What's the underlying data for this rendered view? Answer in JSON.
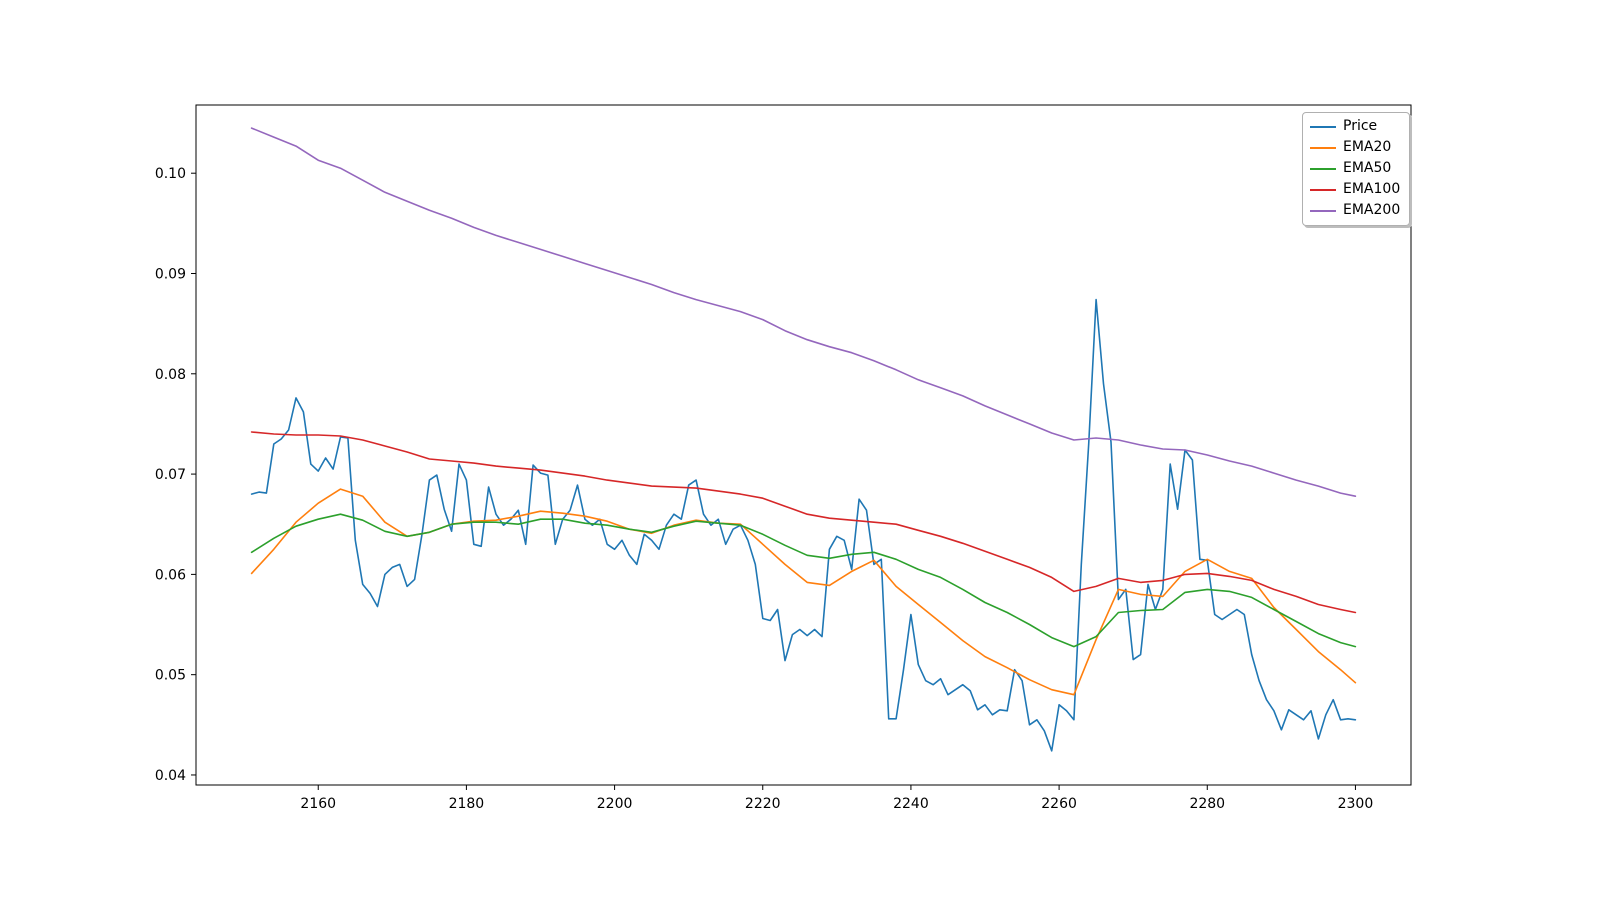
{
  "chart_data": {
    "type": "line",
    "title": "",
    "xlabel": "",
    "ylabel": "",
    "grid": false,
    "legend_position": "upper right",
    "xlim": [
      2143.5,
      2307.5
    ],
    "ylim": [
      0.039,
      0.1068
    ],
    "x_ticks": [
      2160,
      2180,
      2200,
      2220,
      2240,
      2260,
      2280,
      2300
    ],
    "y_ticks": [
      0.04,
      0.05,
      0.06,
      0.07,
      0.08,
      0.09,
      0.1
    ],
    "axis_color": "#000000",
    "tick_label_color": "#000000",
    "series": [
      {
        "name": "Price",
        "color": "#1f77b4",
        "x_start": 2151,
        "x_step": 1,
        "y": [
          0.068,
          0.0682,
          0.0681,
          0.073,
          0.0735,
          0.0744,
          0.0776,
          0.0762,
          0.071,
          0.0703,
          0.0716,
          0.0705,
          0.0737,
          0.0736,
          0.0634,
          0.059,
          0.0581,
          0.0568,
          0.06,
          0.0607,
          0.061,
          0.0588,
          0.0595,
          0.064,
          0.0694,
          0.0699,
          0.0665,
          0.0643,
          0.071,
          0.0694,
          0.063,
          0.0628,
          0.0687,
          0.066,
          0.0649,
          0.0655,
          0.0664,
          0.063,
          0.0709,
          0.0701,
          0.0699,
          0.063,
          0.0655,
          0.0664,
          0.0689,
          0.0655,
          0.0649,
          0.0655,
          0.063,
          0.0625,
          0.0634,
          0.0619,
          0.061,
          0.064,
          0.0634,
          0.0625,
          0.0649,
          0.066,
          0.0655,
          0.0689,
          0.0694,
          0.066,
          0.0649,
          0.0655,
          0.063,
          0.0645,
          0.0649,
          0.0634,
          0.061,
          0.0556,
          0.0554,
          0.0565,
          0.0514,
          0.054,
          0.0545,
          0.0539,
          0.0545,
          0.0538,
          0.0625,
          0.0638,
          0.0634,
          0.0605,
          0.0675,
          0.0664,
          0.061,
          0.0615,
          0.0456,
          0.0456,
          0.0505,
          0.056,
          0.051,
          0.0494,
          0.049,
          0.0496,
          0.048,
          0.0485,
          0.049,
          0.0484,
          0.0465,
          0.047,
          0.046,
          0.0465,
          0.0464,
          0.0505,
          0.0494,
          0.045,
          0.0455,
          0.0444,
          0.0424,
          0.047,
          0.0464,
          0.0455,
          0.061,
          0.073,
          0.0874,
          0.079,
          0.0732,
          0.0575,
          0.0585,
          0.0515,
          0.052,
          0.059,
          0.0565,
          0.0585,
          0.071,
          0.0665,
          0.0724,
          0.0714,
          0.0615,
          0.0614,
          0.056,
          0.0555,
          0.056,
          0.0565,
          0.056,
          0.052,
          0.0494,
          0.0475,
          0.0464,
          0.0445,
          0.0465,
          0.046,
          0.0455,
          0.0464,
          0.0436,
          0.046,
          0.0475,
          0.0455,
          0.0456,
          0.0455
        ]
      },
      {
        "name": "EMA20",
        "color": "#ff7f0e",
        "x": [
          2151,
          2154,
          2157,
          2160,
          2163,
          2166,
          2169,
          2172,
          2175,
          2178,
          2181,
          2184,
          2187,
          2190,
          2193,
          2196,
          2199,
          2202,
          2205,
          2208,
          2211,
          2214,
          2217,
          2220,
          2223,
          2226,
          2229,
          2232,
          2235,
          2238,
          2241,
          2244,
          2247,
          2250,
          2253,
          2256,
          2259,
          2262,
          2265,
          2268,
          2271,
          2274,
          2277,
          2280,
          2283,
          2286,
          2289,
          2292,
          2295,
          2298,
          2300
        ],
        "y": [
          0.0601,
          0.0625,
          0.0652,
          0.0671,
          0.0685,
          0.0678,
          0.0652,
          0.0638,
          0.0642,
          0.065,
          0.0653,
          0.0654,
          0.0658,
          0.0663,
          0.0661,
          0.0658,
          0.0653,
          0.0645,
          0.0641,
          0.0649,
          0.0654,
          0.0651,
          0.065,
          0.063,
          0.061,
          0.0592,
          0.0589,
          0.0603,
          0.0614,
          0.0588,
          0.057,
          0.0552,
          0.0534,
          0.0518,
          0.0507,
          0.0495,
          0.0485,
          0.048,
          0.0535,
          0.0585,
          0.058,
          0.0578,
          0.0603,
          0.0615,
          0.0603,
          0.0596,
          0.0567,
          0.0545,
          0.0523,
          0.0505,
          0.0492
        ]
      },
      {
        "name": "EMA50",
        "color": "#2ca02c",
        "x": [
          2151,
          2154,
          2157,
          2160,
          2163,
          2166,
          2169,
          2172,
          2175,
          2178,
          2181,
          2184,
          2187,
          2190,
          2193,
          2196,
          2199,
          2202,
          2205,
          2208,
          2211,
          2214,
          2217,
          2220,
          2223,
          2226,
          2229,
          2232,
          2235,
          2238,
          2241,
          2244,
          2247,
          2250,
          2253,
          2256,
          2259,
          2262,
          2265,
          2268,
          2271,
          2274,
          2277,
          2280,
          2283,
          2286,
          2289,
          2292,
          2295,
          2298,
          2300
        ],
        "y": [
          0.0622,
          0.0636,
          0.0648,
          0.0655,
          0.066,
          0.0654,
          0.0643,
          0.0638,
          0.0642,
          0.065,
          0.0652,
          0.0652,
          0.065,
          0.0655,
          0.0655,
          0.0651,
          0.0649,
          0.0645,
          0.0642,
          0.0648,
          0.0653,
          0.0651,
          0.0649,
          0.064,
          0.0629,
          0.0619,
          0.0616,
          0.062,
          0.0622,
          0.0615,
          0.0605,
          0.0597,
          0.0585,
          0.0572,
          0.0562,
          0.055,
          0.0537,
          0.0528,
          0.0538,
          0.0562,
          0.0564,
          0.0565,
          0.0582,
          0.0585,
          0.0583,
          0.0577,
          0.0565,
          0.0553,
          0.0541,
          0.0532,
          0.0528
        ]
      },
      {
        "name": "EMA100",
        "color": "#d62728",
        "x": [
          2151,
          2154,
          2157,
          2160,
          2163,
          2166,
          2169,
          2172,
          2175,
          2178,
          2181,
          2184,
          2187,
          2190,
          2193,
          2196,
          2199,
          2202,
          2205,
          2208,
          2211,
          2214,
          2217,
          2220,
          2223,
          2226,
          2229,
          2232,
          2235,
          2238,
          2241,
          2244,
          2247,
          2250,
          2253,
          2256,
          2259,
          2262,
          2265,
          2268,
          2271,
          2274,
          2277,
          2280,
          2283,
          2286,
          2289,
          2292,
          2295,
          2298,
          2300
        ],
        "y": [
          0.0742,
          0.074,
          0.0739,
          0.0739,
          0.0738,
          0.0734,
          0.0728,
          0.0722,
          0.0715,
          0.0713,
          0.0711,
          0.0708,
          0.0706,
          0.0704,
          0.0701,
          0.0698,
          0.0694,
          0.0691,
          0.0688,
          0.0687,
          0.0686,
          0.0683,
          0.068,
          0.0676,
          0.0668,
          0.066,
          0.0656,
          0.0654,
          0.0652,
          0.065,
          0.0644,
          0.0638,
          0.0631,
          0.0623,
          0.0615,
          0.0607,
          0.0597,
          0.0583,
          0.0588,
          0.0596,
          0.0592,
          0.0594,
          0.06,
          0.0601,
          0.0598,
          0.0594,
          0.0585,
          0.0578,
          0.057,
          0.0565,
          0.0562
        ]
      },
      {
        "name": "EMA200",
        "color": "#9467bd",
        "x": [
          2151,
          2154,
          2157,
          2160,
          2163,
          2166,
          2169,
          2172,
          2175,
          2178,
          2181,
          2184,
          2187,
          2190,
          2193,
          2196,
          2199,
          2202,
          2205,
          2208,
          2211,
          2214,
          2217,
          2220,
          2223,
          2226,
          2229,
          2232,
          2235,
          2238,
          2241,
          2244,
          2247,
          2250,
          2253,
          2256,
          2259,
          2262,
          2265,
          2268,
          2271,
          2274,
          2277,
          2280,
          2283,
          2286,
          2289,
          2292,
          2295,
          2298,
          2300
        ],
        "y": [
          0.1045,
          0.1036,
          0.1027,
          0.1013,
          0.1005,
          0.0993,
          0.0981,
          0.0972,
          0.0963,
          0.0955,
          0.0946,
          0.0938,
          0.0931,
          0.0924,
          0.0917,
          0.091,
          0.0903,
          0.0896,
          0.0889,
          0.0881,
          0.0874,
          0.0868,
          0.0862,
          0.0854,
          0.0843,
          0.0834,
          0.0827,
          0.0821,
          0.0813,
          0.0804,
          0.0794,
          0.0786,
          0.0778,
          0.0768,
          0.0759,
          0.075,
          0.0741,
          0.0734,
          0.0736,
          0.0734,
          0.0729,
          0.0725,
          0.0724,
          0.0719,
          0.0713,
          0.0708,
          0.0701,
          0.0694,
          0.0688,
          0.0681,
          0.0678
        ]
      }
    ]
  }
}
